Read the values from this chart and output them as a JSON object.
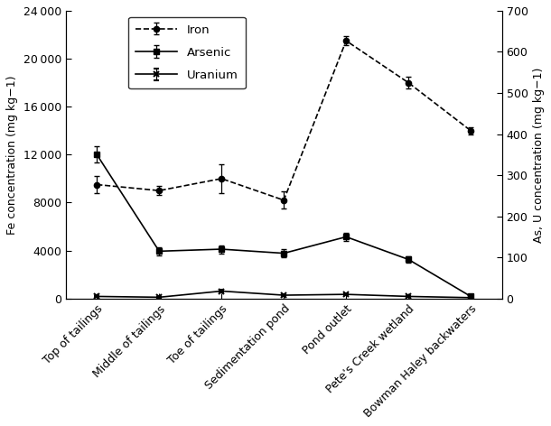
{
  "categories": [
    "Top of tailings",
    "Middle of tailings",
    "Toe of tailings",
    "Sedimentation pond",
    "Pond outlet",
    "Pete's Creek wetland",
    "Bowman Haley backwaters"
  ],
  "iron_values": [
    9500,
    9000,
    10000,
    8200,
    21500,
    18000,
    14000
  ],
  "iron_err": [
    700,
    400,
    1200,
    700,
    400,
    500,
    300
  ],
  "arsenic_values": [
    350,
    115,
    120,
    110,
    150,
    95,
    5
  ],
  "arsenic_err": [
    20,
    10,
    10,
    10,
    10,
    8,
    2
  ],
  "uranium_values": [
    5,
    3,
    18,
    8,
    10,
    5,
    2
  ],
  "uranium_err": [
    1,
    1,
    3,
    2,
    2,
    1,
    1
  ],
  "fe_ylim": [
    0,
    24000
  ],
  "as_u_ylim": [
    0,
    700
  ],
  "fe_yticks": [
    0,
    4000,
    8000,
    12000,
    16000,
    20000,
    24000
  ],
  "as_u_yticks": [
    0,
    100,
    200,
    300,
    400,
    500,
    600,
    700
  ],
  "ylabel_left": "Fe concentration (mg kg−1)",
  "ylabel_right": "As, U concentration (mg kg−1)",
  "fe_tick_labels": [
    "0",
    "4000",
    "8000",
    "12 000",
    "16 000",
    "20 000",
    "24 000"
  ],
  "legend_labels": [
    "Iron",
    "Arsenic",
    "Uranium"
  ]
}
